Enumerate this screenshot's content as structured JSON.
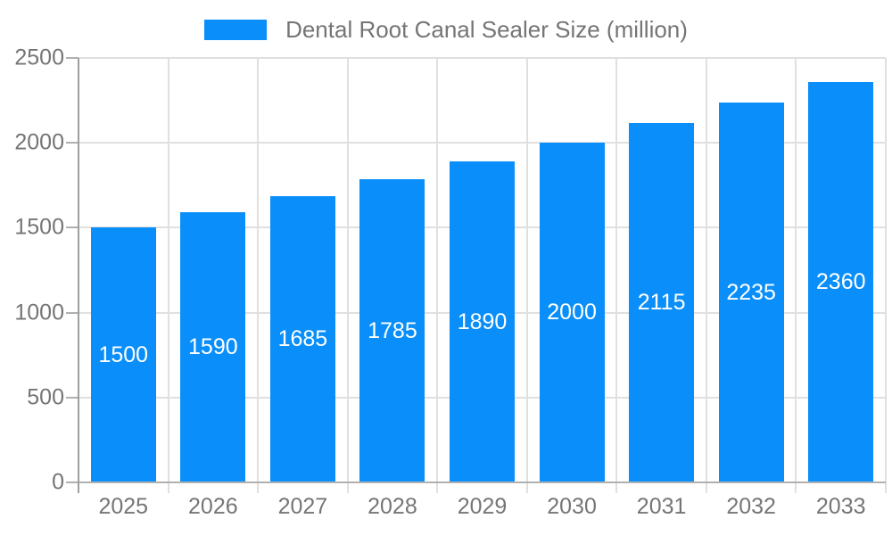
{
  "legend": {
    "label": "Dental Root Canal Sealer Size (million)"
  },
  "chart_data": {
    "type": "bar",
    "title": "Dental Root Canal Sealer Size (million)",
    "categories": [
      "2025",
      "2026",
      "2027",
      "2028",
      "2029",
      "2030",
      "2031",
      "2032",
      "2033"
    ],
    "values": [
      1500,
      1590,
      1685,
      1785,
      1890,
      2000,
      2115,
      2235,
      2360
    ],
    "xlabel": "",
    "ylabel": "",
    "ylim": [
      0,
      2500
    ],
    "yticks": [
      0,
      500,
      1000,
      1500,
      2000,
      2500
    ],
    "grid": true,
    "legend_position": "top",
    "value_labels": "centered-inside-bars",
    "bar_color": "#0a8ffa",
    "value_label_color": "#ffffff",
    "axis_text_color": "#757575",
    "legend_text_color": "#757575"
  }
}
